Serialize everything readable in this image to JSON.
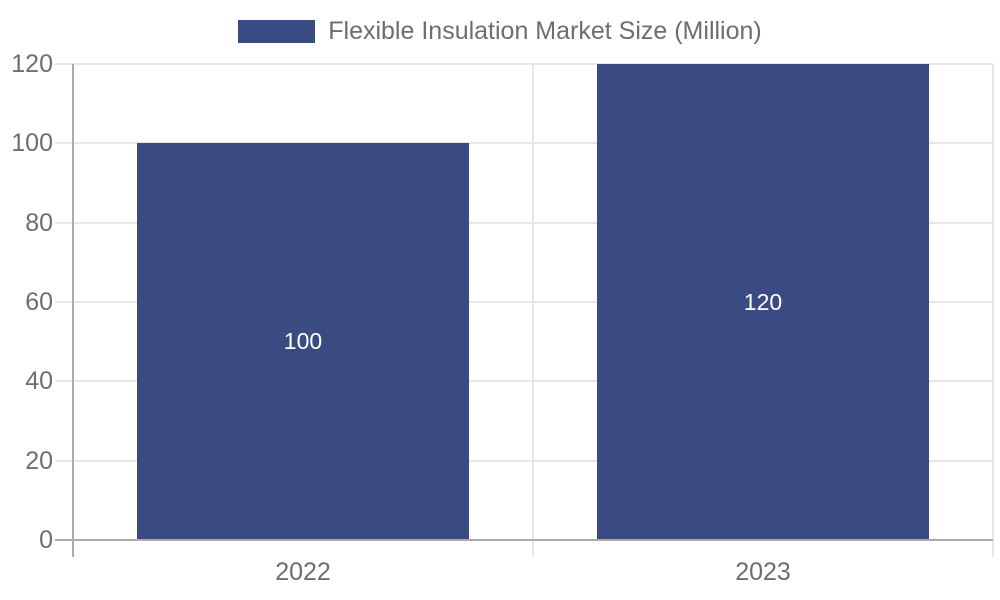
{
  "chart_data": {
    "type": "bar",
    "title": "",
    "legend": {
      "label": "Flexible Insulation Market Size (Million)",
      "position": "top"
    },
    "categories": [
      "2022",
      "2023"
    ],
    "series": [
      {
        "name": "Flexible Insulation Market Size (Million)",
        "values": [
          100,
          120
        ]
      }
    ],
    "values": [
      100,
      120
    ],
    "yticks": [
      0,
      20,
      40,
      60,
      80,
      100,
      120
    ],
    "ylim": [
      0,
      120
    ],
    "xlabel": "",
    "ylabel": "",
    "grid": true,
    "bar_width_fraction": 0.72,
    "colors": {
      "bar": "#3A4A83",
      "value_label": "#FFFFFF",
      "tick_label": "#6E6E6E",
      "legend_text": "#6E6E6E",
      "grid_line": "#E6E6E6",
      "axis_line": "#ABABAB"
    }
  }
}
